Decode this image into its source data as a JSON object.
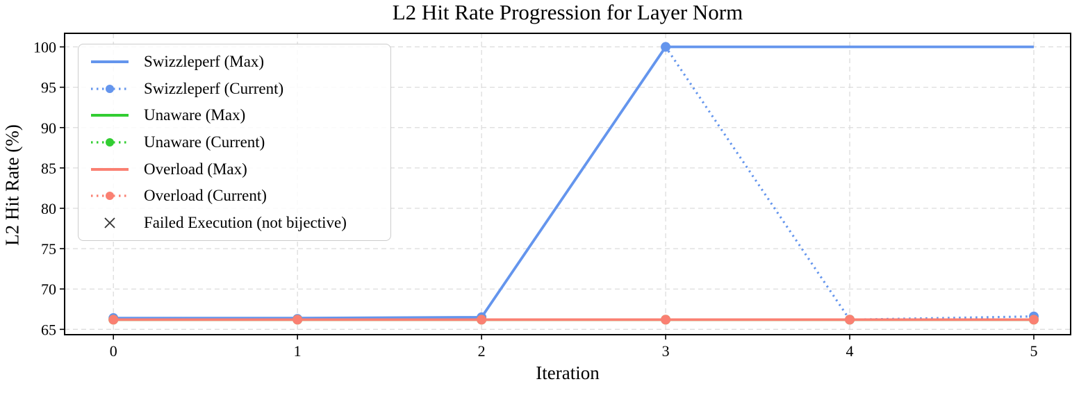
{
  "title": "L2 Hit Rate Progression for Layer Norm",
  "axes": {
    "xlabel": "Iteration",
    "ylabel": "L2 Hit Rate (%)",
    "x_ticks": [
      0,
      1,
      2,
      3,
      4,
      5
    ],
    "y_ticks": [
      65,
      70,
      75,
      80,
      85,
      90,
      95,
      100
    ],
    "xlim": [
      -0.265,
      5.2
    ],
    "ylim": [
      64.34,
      101.68
    ],
    "grid": true
  },
  "colors": {
    "swizzleperf": "#6495ED",
    "unaware": "#32CD32",
    "overload": "#FA8072",
    "grid": "#DCDCDC",
    "axes_frame": "#000000",
    "failed_marker": "#333333",
    "background": "#FFFFFF"
  },
  "legend": {
    "position": "upper left",
    "items": [
      {
        "label": "Swizzleperf (Max)",
        "swatch": "solid",
        "color": "#6495ED"
      },
      {
        "label": "Swizzleperf (Current)",
        "swatch": "dotted-marker",
        "color": "#6495ED"
      },
      {
        "label": "Unaware (Max)",
        "swatch": "solid",
        "color": "#32CD32"
      },
      {
        "label": "Unaware (Current)",
        "swatch": "dotted-marker",
        "color": "#32CD32"
      },
      {
        "label": "Overload (Max)",
        "swatch": "solid",
        "color": "#FA8072"
      },
      {
        "label": "Overload (Current)",
        "swatch": "dotted-marker",
        "color": "#FA8072"
      },
      {
        "label": "Failed Execution (not bijective)",
        "swatch": "x-marker",
        "color": "#333333"
      }
    ]
  },
  "chart_data": {
    "type": "line",
    "title": "L2 Hit Rate Progression for Layer Norm",
    "xlabel": "Iteration",
    "ylabel": "L2 Hit Rate (%)",
    "x": [
      0,
      1,
      2,
      3,
      4,
      5
    ],
    "xlim": [
      -0.265,
      5.2
    ],
    "ylim": [
      64.34,
      101.68
    ],
    "grid": true,
    "legend_position": "upper left",
    "series": [
      {
        "name": "Swizzleperf (Max)",
        "color": "#6495ED",
        "style": "solid",
        "marker": "none",
        "values": [
          66.4,
          66.4,
          66.5,
          100,
          100,
          100
        ]
      },
      {
        "name": "Swizzleperf (Current)",
        "color": "#6495ED",
        "style": "dotted",
        "marker": "circle",
        "values": [
          66.4,
          66.3,
          66.5,
          100,
          66.2,
          66.6
        ]
      },
      {
        "name": "Unaware (Max)",
        "color": "#32CD32",
        "style": "solid",
        "marker": "none",
        "values": [
          66.2,
          66.2,
          66.2,
          66.2,
          66.2,
          66.2
        ]
      },
      {
        "name": "Unaware (Current)",
        "color": "#32CD32",
        "style": "dotted",
        "marker": "circle",
        "values": [
          66.2,
          66.2,
          66.2,
          66.2,
          66.2,
          66.2
        ]
      },
      {
        "name": "Overload (Max)",
        "color": "#FA8072",
        "style": "solid",
        "marker": "none",
        "values": [
          66.2,
          66.2,
          66.2,
          66.2,
          66.2,
          66.2
        ]
      },
      {
        "name": "Overload (Current)",
        "color": "#FA8072",
        "style": "dotted",
        "marker": "circle",
        "values": [
          66.2,
          66.2,
          66.2,
          66.2,
          66.2,
          66.2
        ]
      }
    ],
    "failed_execution_points": []
  }
}
